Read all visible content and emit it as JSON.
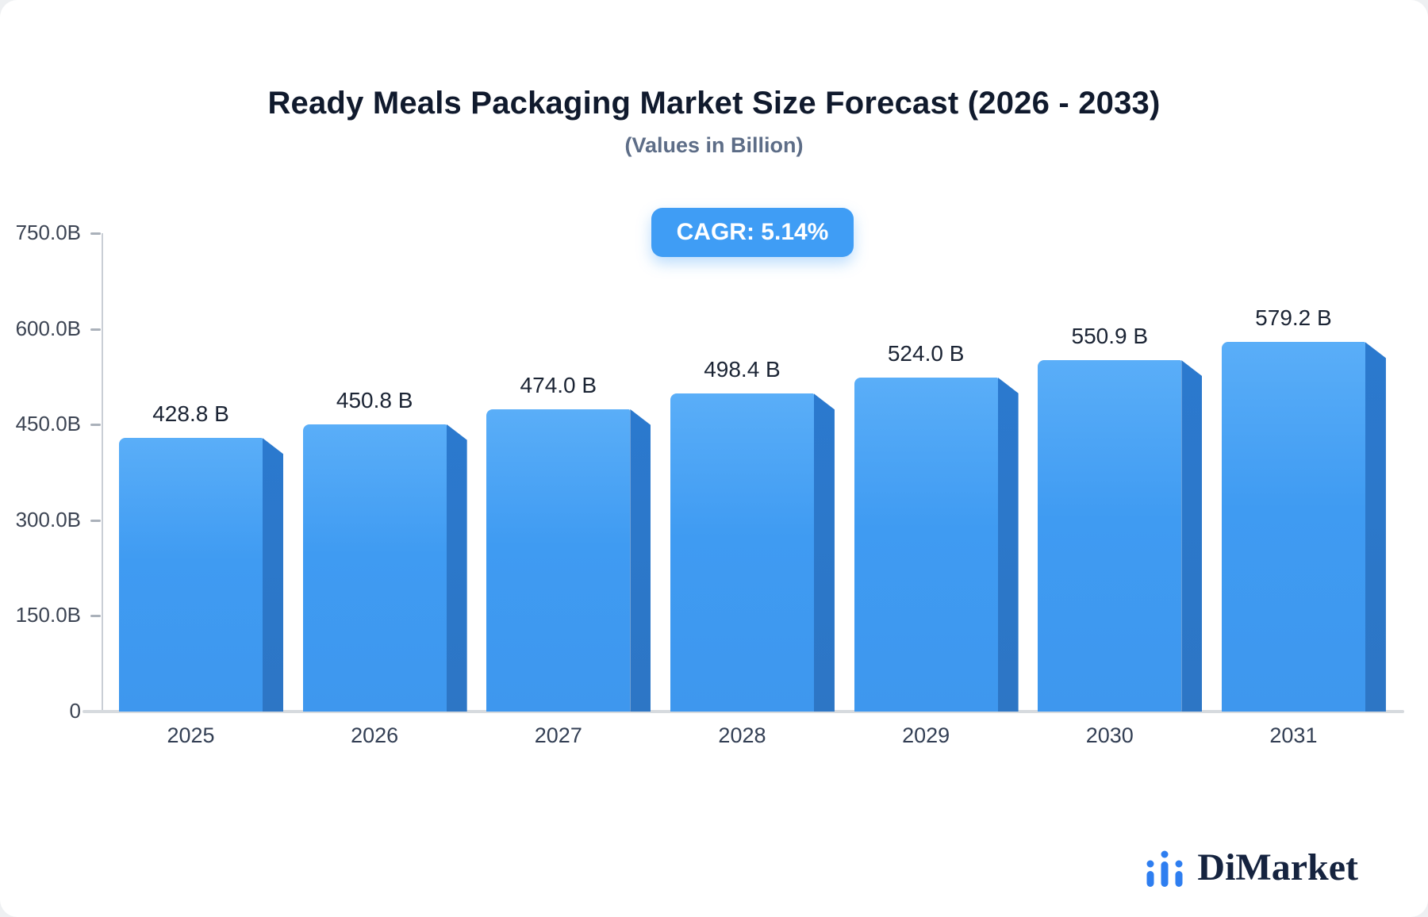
{
  "title": "Ready Meals Packaging Market Size Forecast (2026 - 2033)",
  "subtitle": "(Values in Billion)",
  "cagr_label": "CAGR: 5.14%",
  "brand": {
    "name": "DiMarket"
  },
  "colors": {
    "bar_face": "#3f9bf2",
    "bar_side": "#2b79ce",
    "badge_bg": "#3f9df5",
    "axis": "#c9ced5",
    "logo_blue": "#2e7ef0"
  },
  "chart_data": {
    "type": "bar",
    "title": "Ready Meals Packaging Market Size Forecast (2026 - 2033)",
    "subtitle": "(Values in Billion)",
    "categories": [
      "2025",
      "2026",
      "2027",
      "2028",
      "2029",
      "2030",
      "2031"
    ],
    "values": [
      428.8,
      450.8,
      474.0,
      498.4,
      524.0,
      550.9,
      579.2
    ],
    "value_labels": [
      "428.8 B",
      "450.8 B",
      "474.0 B",
      "498.4 B",
      "524.0 B",
      "550.9 B",
      "579.2 B"
    ],
    "y_ticks": [
      "750.0B",
      "600.0B",
      "450.0B",
      "300.0B",
      "150.0B",
      "0"
    ],
    "ylim": [
      0,
      750
    ],
    "ylabel": "",
    "xlabel": "",
    "grid": false,
    "legend": false,
    "annotation": "CAGR: 5.14%"
  }
}
